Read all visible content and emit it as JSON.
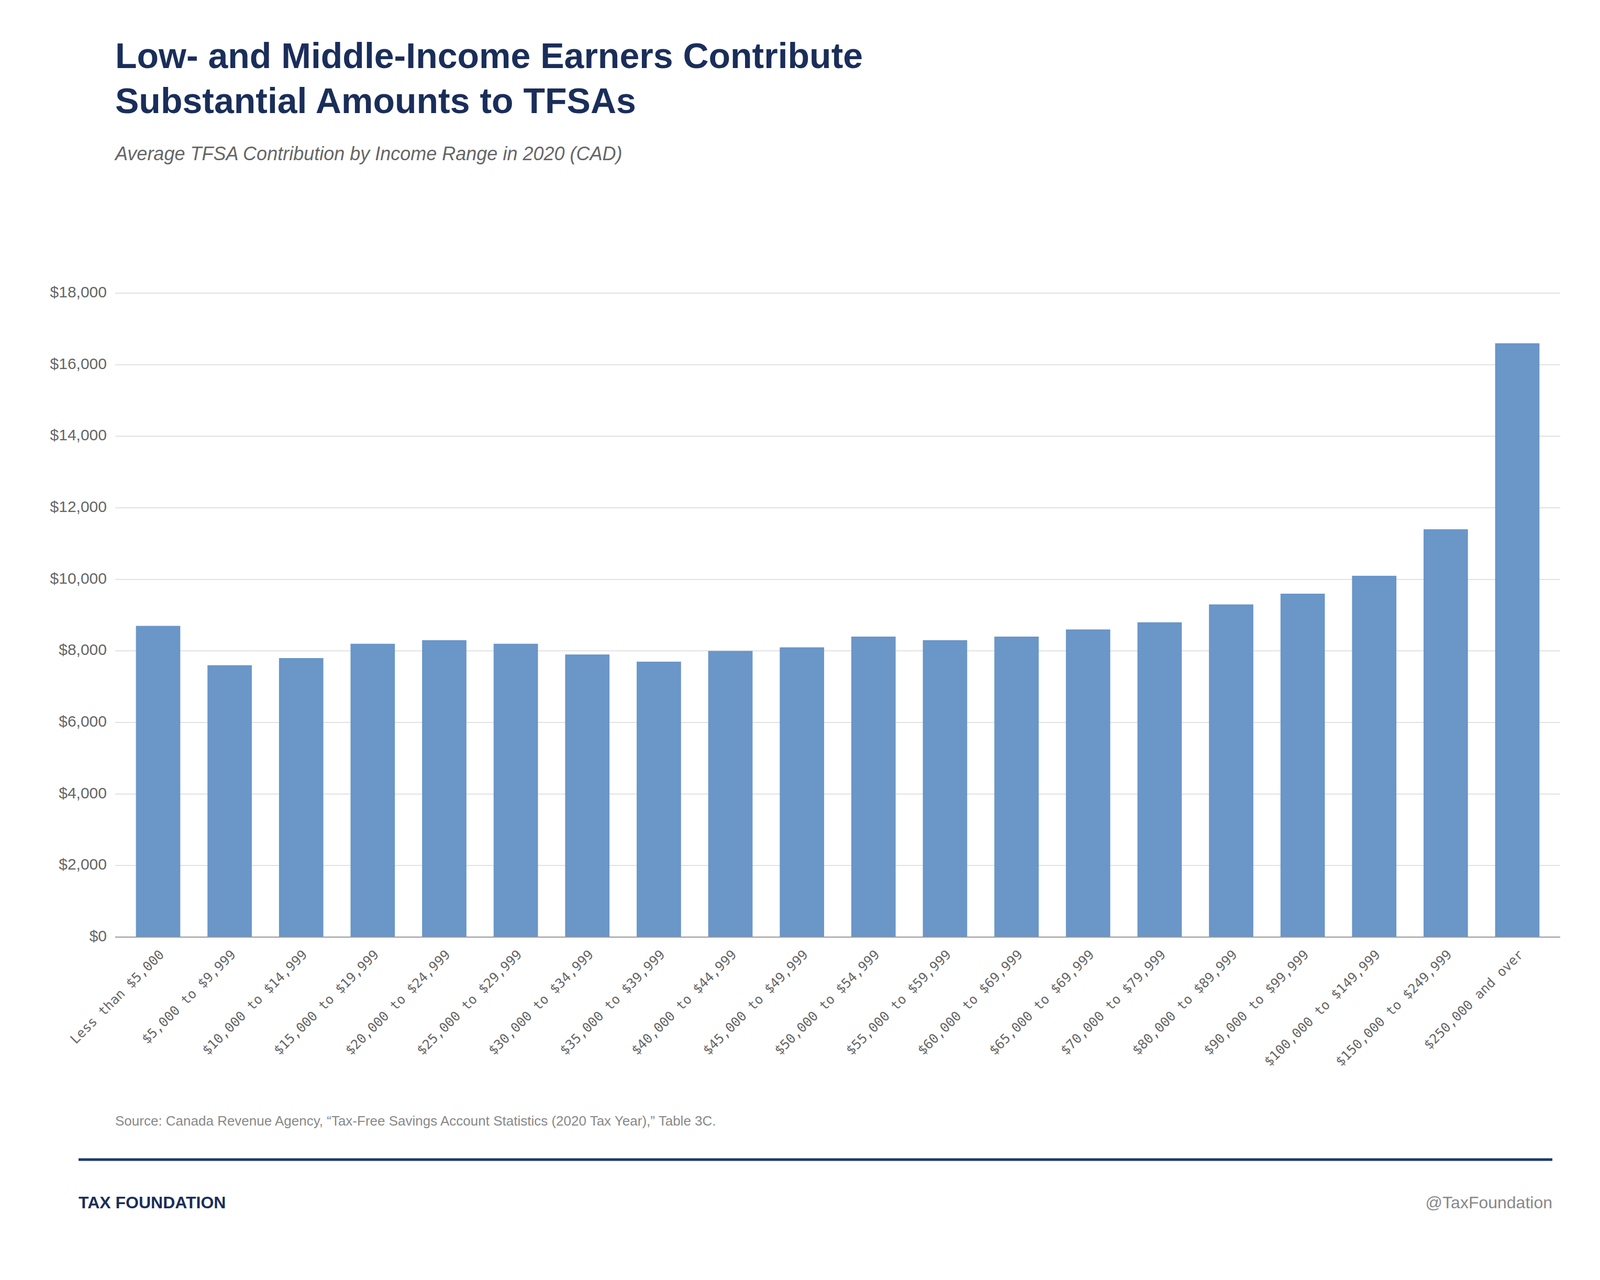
{
  "chart_data": {
    "type": "bar",
    "title": "Low- and Middle-Income Earners Contribute\nSubstantial Amounts to TFSAs",
    "subtitle": "Average TFSA Contribution by Income Range in 2020 (CAD)",
    "categories": [
      "Less than $5,000",
      "$5,000 to $9,999",
      "$10,000 to $14,999",
      "$15,000 to $19,999",
      "$20,000 to $24,999",
      "$25,000 to $29,999",
      "$30,000 to $34,999",
      "$35,000 to $39,999",
      "$40,000 to $44,999",
      "$45,000 to $49,999",
      "$50,000 to $54,999",
      "$55,000 to $59,999",
      "$60,000 to $69,999",
      "$65,000 to $69,999",
      "$70,000 to $79,999",
      "$80,000 to $89,999",
      "$90,000 to $99,999",
      "$100,000 to $149,999",
      "$150,000 to $249,999",
      "$250,000 and over"
    ],
    "values": [
      8700,
      7600,
      7800,
      8200,
      8300,
      8200,
      7900,
      7700,
      8000,
      8100,
      8400,
      8300,
      8400,
      8600,
      8800,
      9300,
      9600,
      10100,
      11400,
      16600
    ],
    "color": "#6a96c8",
    "ylim": [
      0,
      18000
    ],
    "yticks": [
      {
        "value": 0,
        "label": "$0"
      },
      {
        "value": 2000,
        "label": "$2,000"
      },
      {
        "value": 4000,
        "label": "$4,000"
      },
      {
        "value": 6000,
        "label": "$6,000"
      },
      {
        "value": 8000,
        "label": "$8,000"
      },
      {
        "value": 10000,
        "label": "$10,000"
      },
      {
        "value": 12000,
        "label": "$12,000"
      },
      {
        "value": 14000,
        "label": "$14,000"
      },
      {
        "value": 16000,
        "label": "$16,000"
      },
      {
        "value": 18000,
        "label": "$18,000"
      }
    ],
    "grid": true,
    "annotations": [
      "Source: Canada Revenue Agency, “Tax-Free Savings Account Statistics (2020 Tax Year),” Table 3C.",
      "TAX FOUNDATION",
      "@TaxFoundation"
    ]
  }
}
